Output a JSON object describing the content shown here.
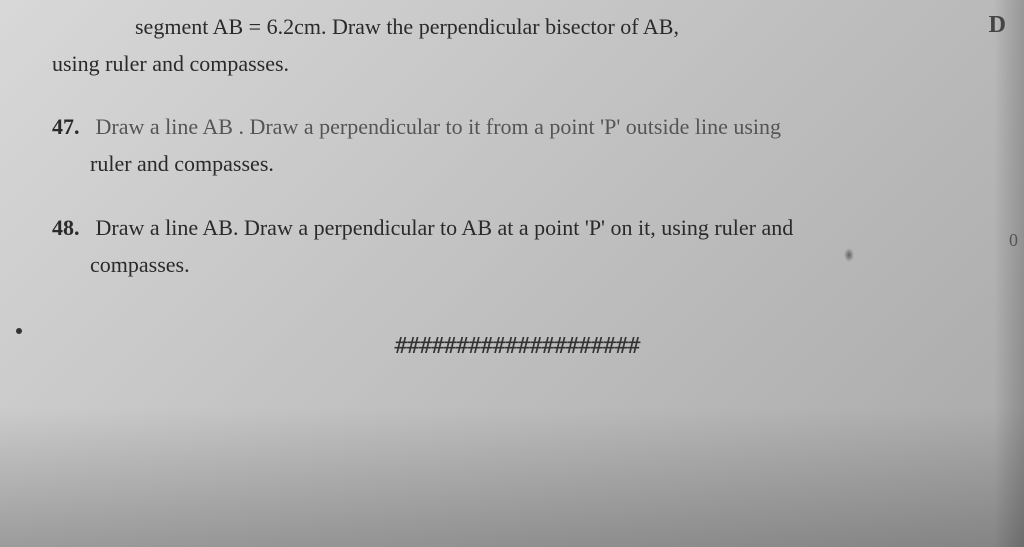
{
  "partial": {
    "line1_prefix": "segment AB = 6.2cm. Draw the perpendicular bisector of AB,",
    "line2": "using ruler and compasses."
  },
  "q47": {
    "number": "47.",
    "line1": "Draw a line AB . Draw a perpendicular to it from a point 'P' outside line using",
    "line2": "ruler and compasses."
  },
  "q48": {
    "number": "48.",
    "line1": "Draw a line AB. Draw a perpendicular to AB at a point 'P' on it, using ruler and",
    "line2": "compasses."
  },
  "divider": "####################",
  "edge_letter": "D",
  "side_char": "0"
}
